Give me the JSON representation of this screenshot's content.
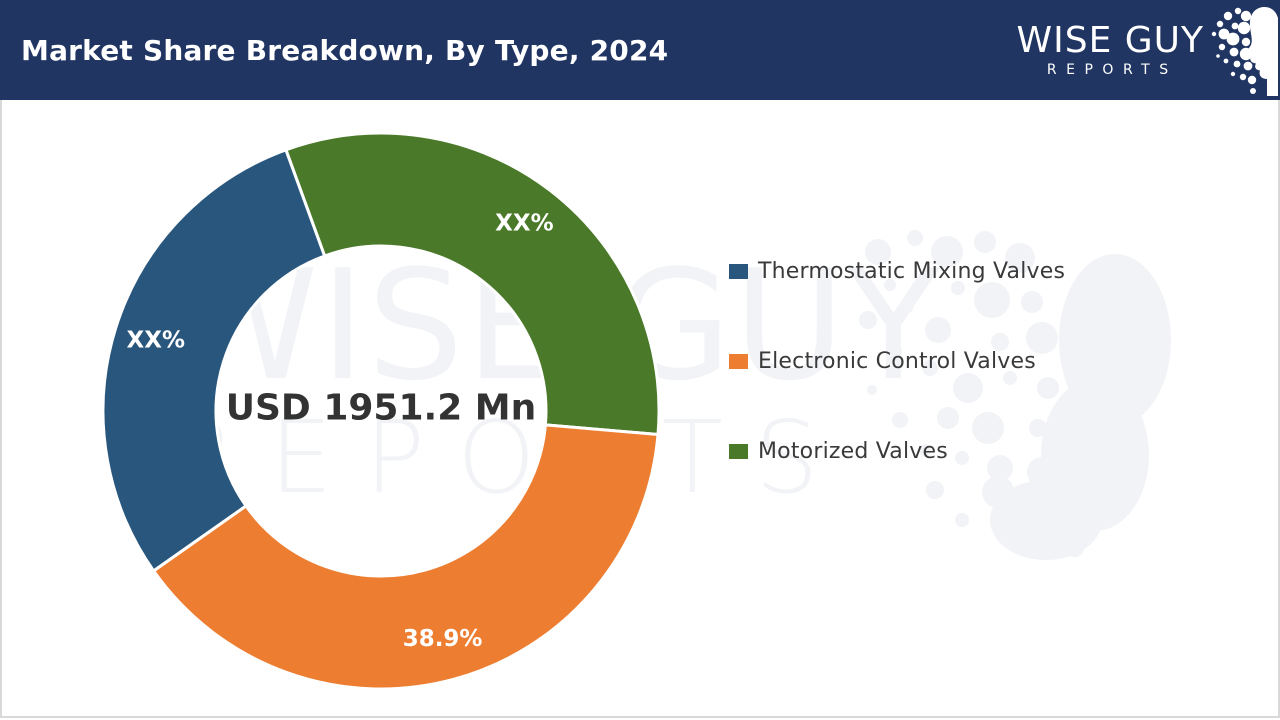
{
  "header": {
    "title": "Market Share Breakdown, By Type, 2024",
    "logo": {
      "wordmark": "WISE GUY",
      "subtitle": "REPORTS"
    }
  },
  "watermark": {
    "wordmark": "WISE GUY",
    "subtitle": "REPORTS"
  },
  "chart_data": {
    "type": "pie",
    "subtype": "donut",
    "title": "Market Share Breakdown, By Type, 2024",
    "center_label": "USD 1951.2 Mn",
    "start_angle_deg": -20,
    "direction": "clockwise",
    "legend_position": "right",
    "segments": [
      {
        "name": "Motorized Valves",
        "label": "XX%",
        "pct": 31.9,
        "color": "#4A7A29"
      },
      {
        "name": "Electronic Control Valves",
        "label": "38.9%",
        "pct": 38.9,
        "color": "#ED7D31"
      },
      {
        "name": "Thermostatic Mixing Valves",
        "label": "XX%",
        "pct": 29.2,
        "color": "#28567D"
      }
    ],
    "legend": [
      {
        "label": "Thermostatic Mixing Valves",
        "color": "#28567D"
      },
      {
        "label": "Electronic Control Valves",
        "color": "#ED7D31"
      },
      {
        "label": "Motorized Valves",
        "color": "#4A7A29"
      }
    ]
  },
  "colors": {
    "header_bg": "#213563",
    "title_text": "#FFFFFF",
    "center_text": "#333333",
    "legend_text": "#3A3A3A",
    "watermark": "#F2F3F6",
    "border": "#D9D9D9"
  }
}
